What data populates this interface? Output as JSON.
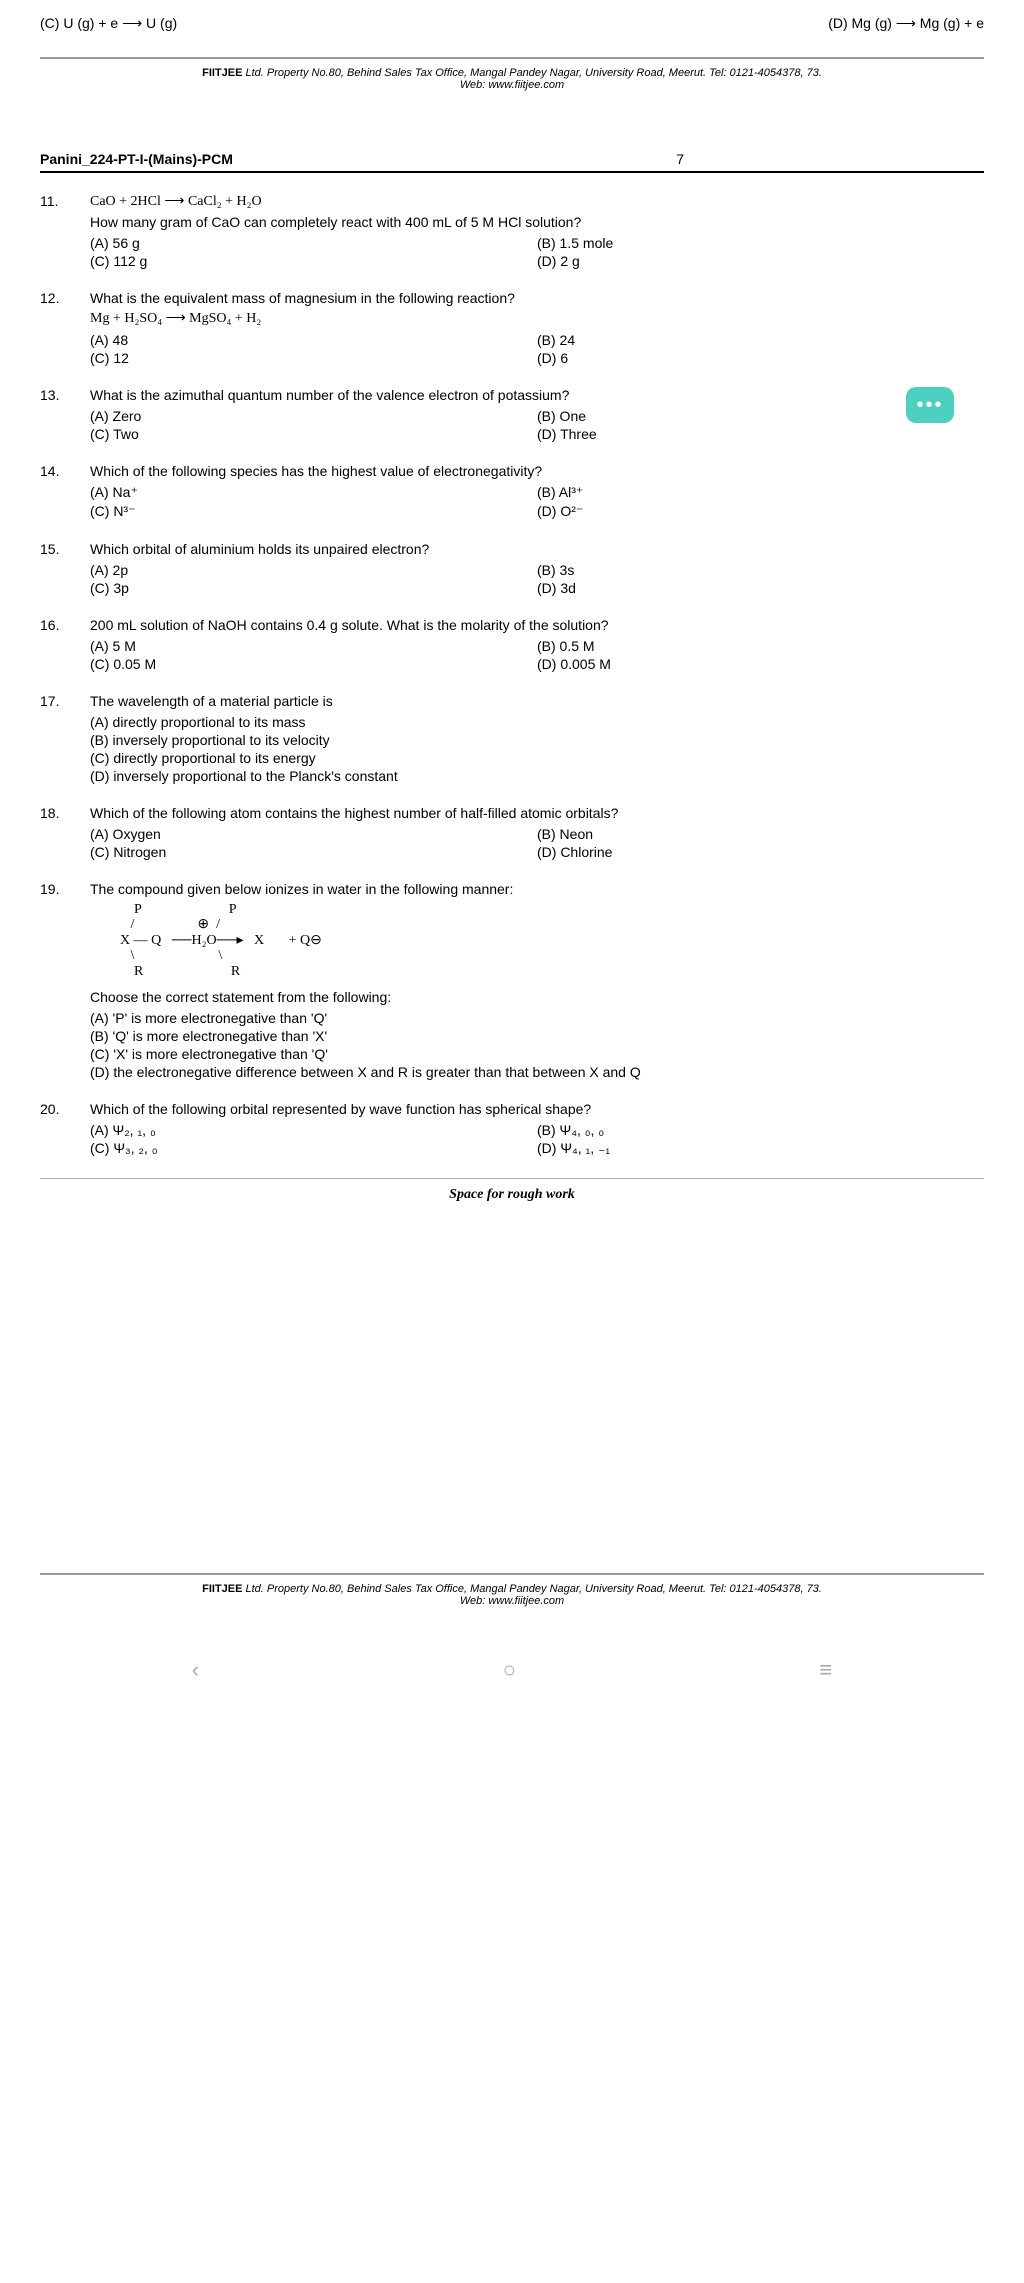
{
  "cutoff": {
    "left": "(C) U (g) + e ⟶ U (g)",
    "right": "(D) Mg (g) ⟶ Mg (g) + e"
  },
  "footer": {
    "brand": "FIITJEE",
    "line1": " Ltd. Property No.80, Behind Sales Tax Office, Mangal Pandey Nagar, University Road, Meerut. Tel: 0121-4054378, 73.",
    "line2": "Web: www.fiitjee.com"
  },
  "header": {
    "title": "Panini_224-PT-I-(Mains)-PCM",
    "page": "7"
  },
  "questions": [
    {
      "num": "11.",
      "equation": "CaO + 2HCl ⟶ CaCl₂ + H₂O",
      "text": "How many gram of CaO can completely react with 400 mL of 5 M HCl solution?",
      "options": [
        {
          "label": "(A) 56 g",
          "cls": "opt-half"
        },
        {
          "label": "(B) 1.5 mole",
          "cls": "opt-half"
        },
        {
          "label": "(C) 112 g",
          "cls": "opt-half"
        },
        {
          "label": "(D) 2 g",
          "cls": "opt-half"
        }
      ]
    },
    {
      "num": "12.",
      "text": "What is the equivalent mass of magnesium in the following reaction?",
      "equation": "Mg + H₂SO₄ ⟶ MgSO₄ + H₂",
      "options": [
        {
          "label": "(A) 48",
          "cls": "opt-half"
        },
        {
          "label": "(B) 24",
          "cls": "opt-half"
        },
        {
          "label": "(C) 12",
          "cls": "opt-half"
        },
        {
          "label": "(D) 6",
          "cls": "opt-half"
        }
      ]
    },
    {
      "num": "13.",
      "text": "What is the azimuthal quantum number of the valence electron of potassium?",
      "badge": true,
      "options": [
        {
          "label": "(A) Zero",
          "cls": "opt-half"
        },
        {
          "label": "(B) One",
          "cls": "opt-half"
        },
        {
          "label": "(C) Two",
          "cls": "opt-half"
        },
        {
          "label": "(D) Three",
          "cls": "opt-half"
        }
      ]
    },
    {
      "num": "14.",
      "text": "Which of the following species has the highest value of electronegativity?",
      "options": [
        {
          "label": "(A) Na⁺",
          "cls": "opt-half"
        },
        {
          "label": "(B) Al³⁺",
          "cls": "opt-half"
        },
        {
          "label": "(C) N³⁻",
          "cls": "opt-half"
        },
        {
          "label": "(D) O²⁻",
          "cls": "opt-half"
        }
      ]
    },
    {
      "num": "15.",
      "text": "Which orbital of aluminium holds its unpaired electron?",
      "options": [
        {
          "label": "(A) 2p",
          "cls": "opt-half"
        },
        {
          "label": "(B) 3s",
          "cls": "opt-half"
        },
        {
          "label": "(C) 3p",
          "cls": "opt-half"
        },
        {
          "label": "(D) 3d",
          "cls": "opt-half"
        }
      ]
    },
    {
      "num": "16.",
      "text": "200 mL solution of NaOH contains 0.4 g solute. What is the molarity of the solution?",
      "options": [
        {
          "label": "(A) 5 M",
          "cls": "opt-half"
        },
        {
          "label": "(B) 0.5 M",
          "cls": "opt-half"
        },
        {
          "label": "(C) 0.05 M",
          "cls": "opt-half"
        },
        {
          "label": "(D) 0.005 M",
          "cls": "opt-half"
        }
      ]
    },
    {
      "num": "17.",
      "text": "The wavelength of a material particle is",
      "options": [
        {
          "label": "(A) directly proportional to its mass",
          "cls": "opt-full"
        },
        {
          "label": "(B) inversely proportional to its velocity",
          "cls": "opt-full"
        },
        {
          "label": "(C) directly proportional to its energy",
          "cls": "opt-full"
        },
        {
          "label": "(D) inversely proportional to the Planck's constant",
          "cls": "opt-full"
        }
      ]
    },
    {
      "num": "18.",
      "text": "Which of the following atom contains the highest number of half-filled atomic orbitals?",
      "options": [
        {
          "label": "(A) Oxygen",
          "cls": "opt-half"
        },
        {
          "label": "(B) Neon",
          "cls": "opt-half"
        },
        {
          "label": "(C) Nitrogen",
          "cls": "opt-half"
        },
        {
          "label": "(D) Chlorine",
          "cls": "opt-half"
        }
      ]
    },
    {
      "num": "19.",
      "text": "The compound given below ionizes in water in the following manner:",
      "diagram": true,
      "text2": "Choose the correct statement from the following:",
      "options": [
        {
          "label": "(A) 'P' is more electronegative than 'Q'",
          "cls": "opt-full"
        },
        {
          "label": "(B) 'Q' is more electronegative than 'X'",
          "cls": "opt-full"
        },
        {
          "label": "(C) 'X' is more electronegative than 'Q'",
          "cls": "opt-full"
        },
        {
          "label": "(D) the electronegative difference between X and R is greater than that between X and Q",
          "cls": "opt-full"
        }
      ]
    },
    {
      "num": "20.",
      "text": "Which of the following orbital represented by wave function has spherical shape?",
      "options": [
        {
          "label": "(A) Ψ₂, ₁, ₀",
          "cls": "opt-half"
        },
        {
          "label": "(B) Ψ₄, ₀, ₀",
          "cls": "opt-half"
        },
        {
          "label": "(C) Ψ₃, ₂, ₀",
          "cls": "opt-half"
        },
        {
          "label": "(D) Ψ₄, ₁, ₋₁",
          "cls": "opt-half"
        }
      ]
    }
  ],
  "rough": "Space for rough work",
  "badge_dots": "•••",
  "diagram_lines": {
    "l1": "    P                         P",
    "l2": "   /                  ⊕  /",
    "l3": "X — Q   ──H₂O──▸   X       + Q⊖",
    "l4": "   \\                        \\",
    "l5": "    R                         R"
  },
  "nav": {
    "back": "‹",
    "home": "○",
    "menu": "≡"
  }
}
